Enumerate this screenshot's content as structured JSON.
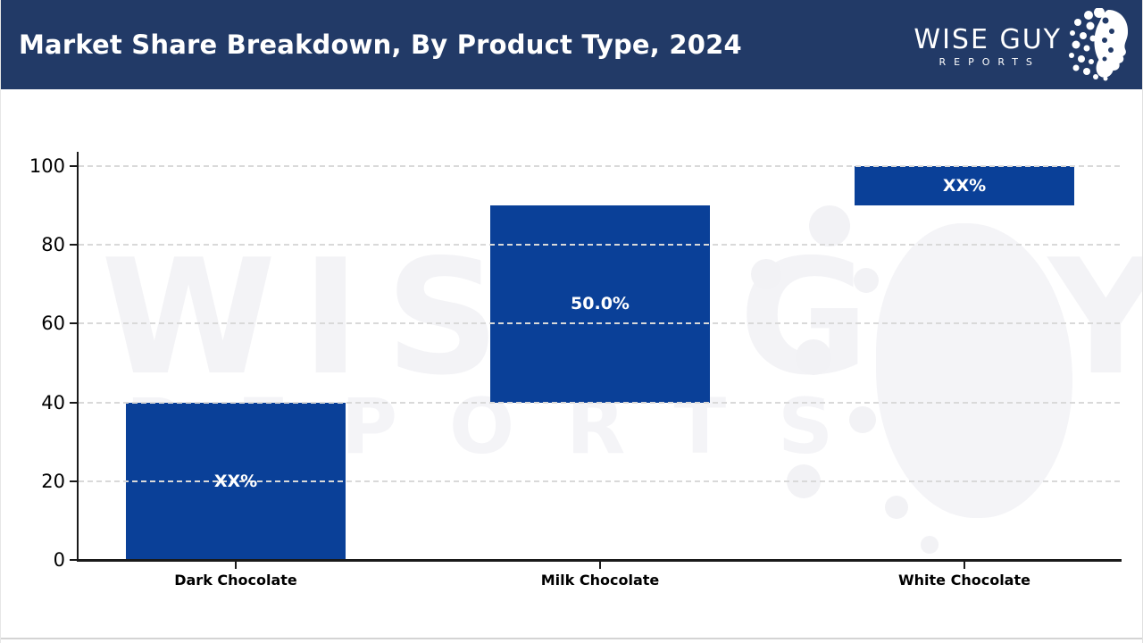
{
  "header": {
    "title": "Market Share Breakdown, By Product Type, 2024",
    "logo": {
      "line1": "WISE GUY",
      "line2": "REPORTS"
    }
  },
  "watermark": {
    "line1": "WISE GUY",
    "line2": "REPORTS"
  },
  "chart_data": {
    "type": "bar",
    "variant": "waterfall-floating-segments",
    "title": "Market Share Breakdown, By Product Type, 2024",
    "categories": [
      "Dark Chocolate",
      "Milk Chocolate",
      "White Chocolate"
    ],
    "bars": [
      {
        "category": "Dark Chocolate",
        "start": 0,
        "end": 40,
        "label": "XX%"
      },
      {
        "category": "Milk Chocolate",
        "start": 40,
        "end": 90,
        "label": "50.0%"
      },
      {
        "category": "White Chocolate",
        "start": 90,
        "end": 100,
        "label": "XX%"
      }
    ],
    "xlabel": "",
    "ylabel": "",
    "yticks": [
      0,
      20,
      40,
      60,
      80,
      100
    ],
    "ylim": [
      0,
      105
    ],
    "grid": "horizontal-dashed",
    "legend": "none",
    "colors": {
      "bar": "#0a4098",
      "bar_label": "#ffffff",
      "axis": "#1a1a1a",
      "gridline": "#d9d9d9",
      "header_bg": "#223a67",
      "watermark": "#f3f3f6"
    }
  }
}
